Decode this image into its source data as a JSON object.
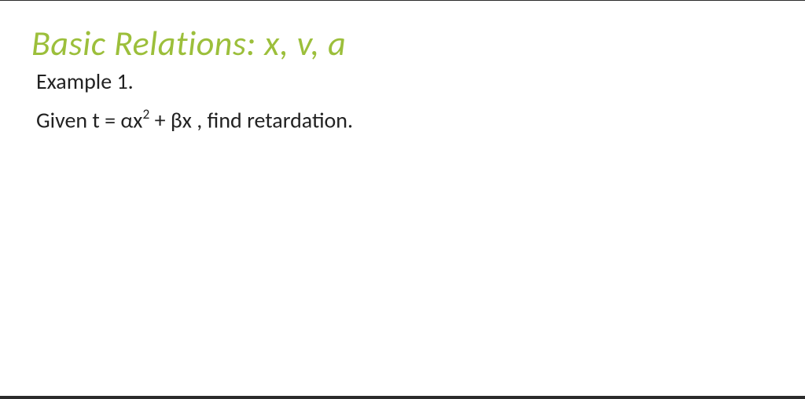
{
  "title": {
    "text": "Basic Relations: x, v, a",
    "color": "#9cbf3b",
    "fontsize": 44
  },
  "subtitle": {
    "text": "Example 1.",
    "color": "#222222",
    "fontsize": 28
  },
  "problem": {
    "prefix": "Given  t = αx",
    "exponent": "2",
    "suffix": "  + βx , find retardation.",
    "color": "#222222",
    "fontsize": 28
  },
  "background_color": "#ffffff",
  "border_color": "#2b2b2b"
}
